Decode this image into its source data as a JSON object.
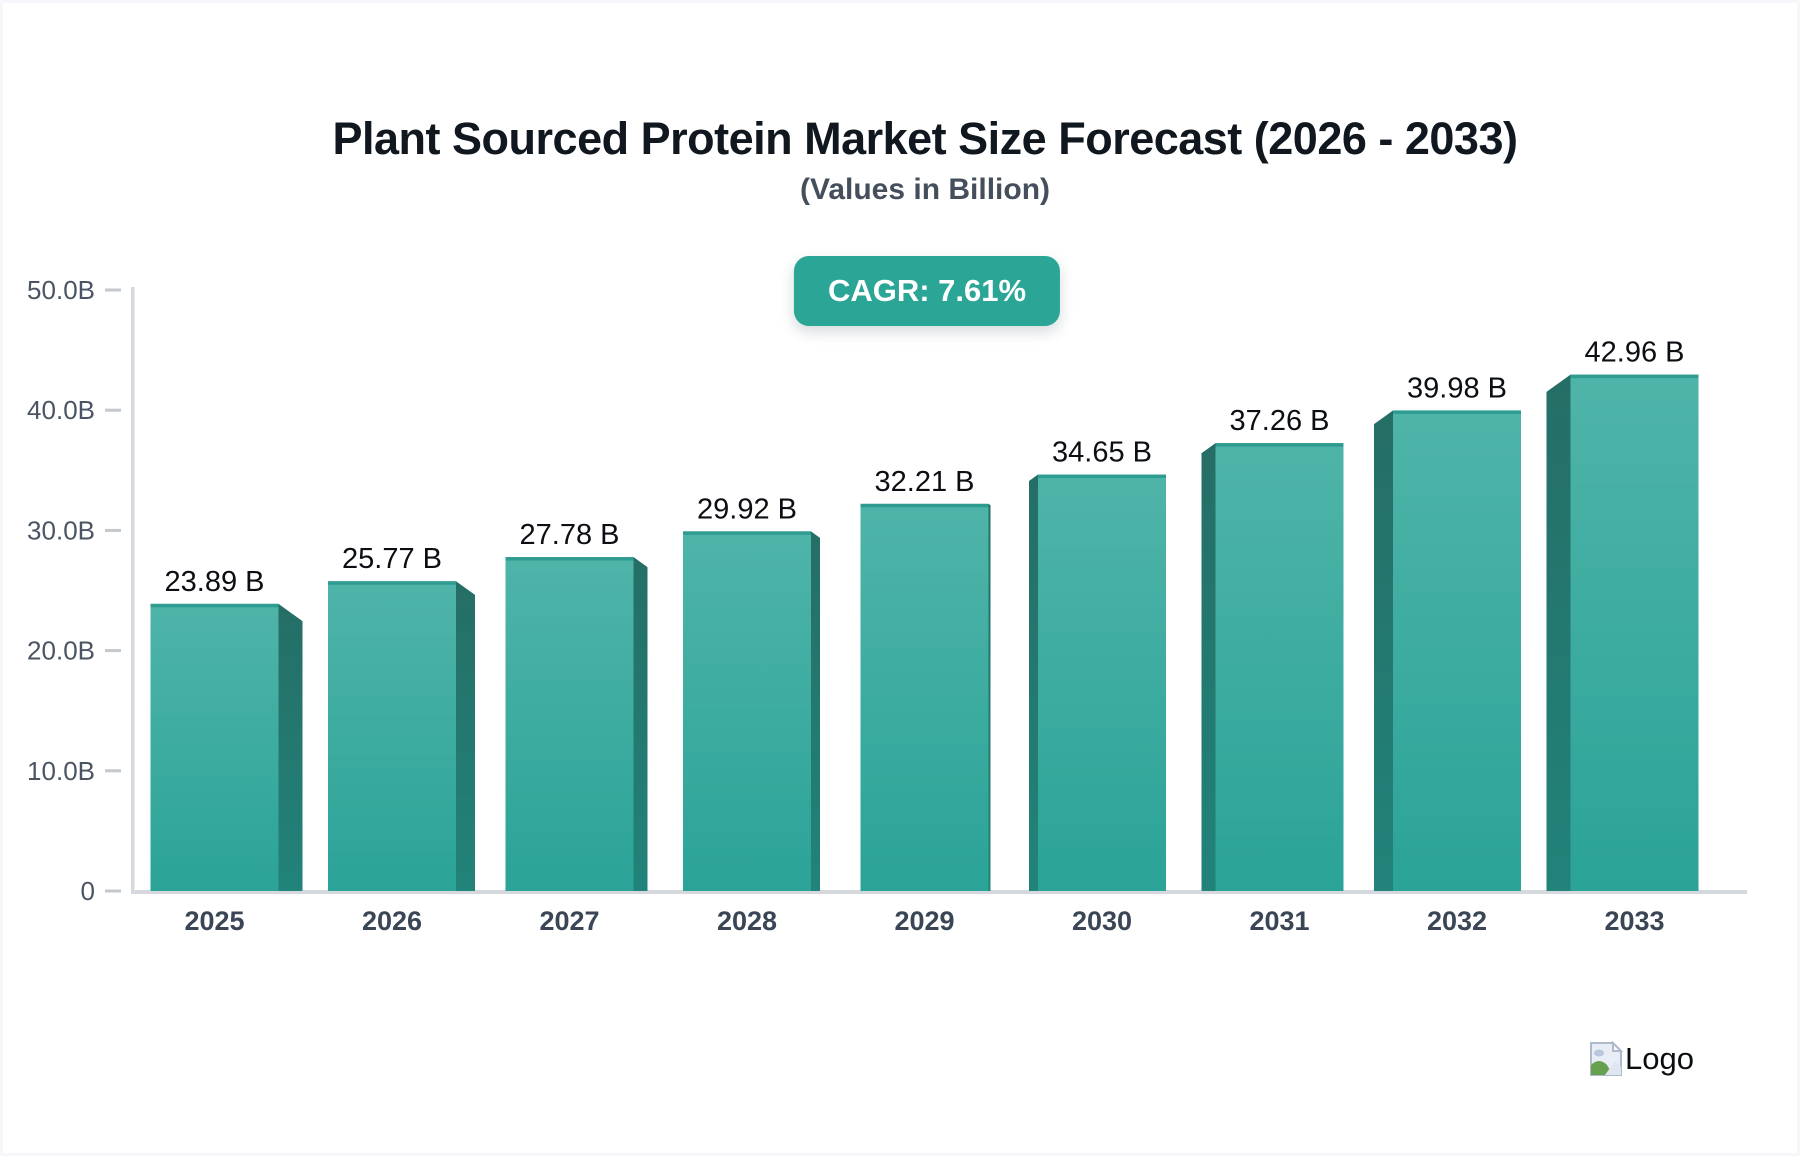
{
  "header": {
    "title": "Plant Sourced Protein Market Size Forecast (2026 - 2033)",
    "subtitle": "(Values in Billion)",
    "cagr_badge": "CAGR: 7.61%",
    "badge_color": "#2aa596"
  },
  "chart_data": {
    "type": "bar",
    "title": "Plant Sourced Protein Market Size Forecast (2026 - 2033)",
    "subtitle": "(Values in Billion)",
    "categories": [
      "2025",
      "2026",
      "2027",
      "2028",
      "2029",
      "2030",
      "2031",
      "2032",
      "2033"
    ],
    "values": [
      23.89,
      25.77,
      27.78,
      29.92,
      32.21,
      34.65,
      37.26,
      39.98,
      42.96
    ],
    "value_labels": [
      "23.89 B",
      "25.77 B",
      "27.78 B",
      "29.92 B",
      "32.21 B",
      "34.65 B",
      "37.26 B",
      "39.98 B",
      "42.96 B"
    ],
    "xlabel": "",
    "ylabel": "",
    "ylim": [
      0,
      50
    ],
    "y_ticks": [
      {
        "value": 50,
        "label": "50.0B"
      },
      {
        "value": 40,
        "label": "40.0B"
      },
      {
        "value": 30,
        "label": "30.0B"
      },
      {
        "value": 20,
        "label": "20.0B"
      },
      {
        "value": 10,
        "label": "10.0B"
      },
      {
        "value": 0,
        "label": "0"
      }
    ],
    "grid": false,
    "legend_position": "none",
    "colors": {
      "bar_face_top": "#4fb4a9",
      "bar_face_bottom": "#2ba397",
      "bar_side_top": "#256e66",
      "bar_side_bottom": "#21837a",
      "bar_top_edge": "#2f9c91",
      "axis_line": "#d5d9dd",
      "tick_dash": "#c2c8ce",
      "value_label": "#0b0e13",
      "category_label": "#3a4656",
      "ytick_label": "#4a5564"
    }
  },
  "footer": {
    "logo_alt": "Logo"
  }
}
